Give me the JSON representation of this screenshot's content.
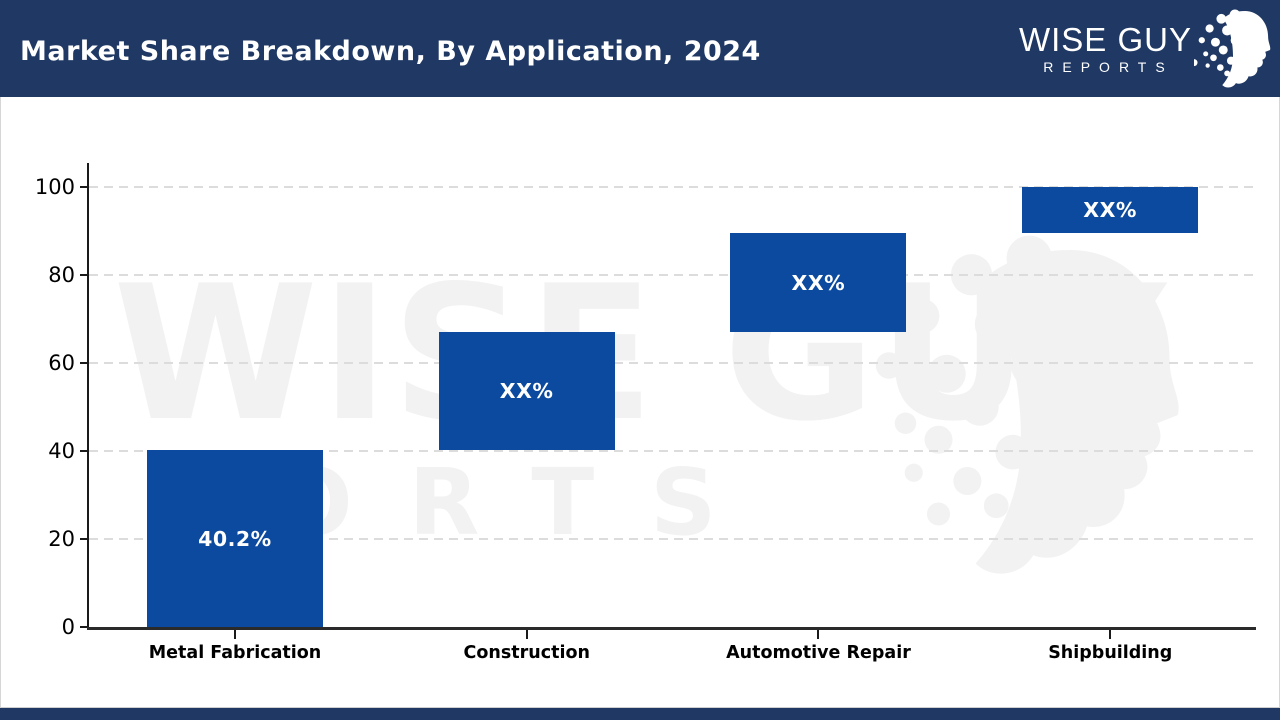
{
  "header": {
    "title": "Market Share Breakdown, By Application, 2024",
    "logo": {
      "line1": "WISE GUY",
      "line2": "REPORTS"
    }
  },
  "watermark": {
    "line1": "WISE GUY",
    "line2": "PORTS"
  },
  "colors": {
    "header_bg": "#1f3864",
    "footer_bg": "#1f3864",
    "bar": "#0b4a9e",
    "gridline": "#dcdcdc",
    "axis": "#1a1a1a",
    "bar_label_text": "#ffffff",
    "watermark": "#f2f2f2"
  },
  "chart_data": {
    "type": "bar",
    "subtype": "waterfall",
    "title": "Market Share Breakdown, By Application, 2024",
    "categories": [
      "Metal Fabrication",
      "Construction",
      "Automotive Repair",
      "Shipbuilding"
    ],
    "segments": [
      {
        "category": "Metal Fabrication",
        "start": 0,
        "end": 40.2,
        "value": 40.2,
        "label": "40.2%"
      },
      {
        "category": "Construction",
        "start": 40.2,
        "end": 67.0,
        "value": 26.8,
        "label": "XX%"
      },
      {
        "category": "Automotive Repair",
        "start": 67.0,
        "end": 89.5,
        "value": 22.5,
        "label": "XX%"
      },
      {
        "category": "Shipbuilding",
        "start": 89.5,
        "end": 100.0,
        "value": 10.5,
        "label": "XX%"
      }
    ],
    "ylim": [
      0,
      100
    ],
    "yticks": [
      0,
      20,
      40,
      60,
      80,
      100
    ],
    "xlabel": "",
    "ylabel": "",
    "grid": "horizontal-dashed",
    "legend": "none",
    "bar_color": "#0b4a9e"
  }
}
